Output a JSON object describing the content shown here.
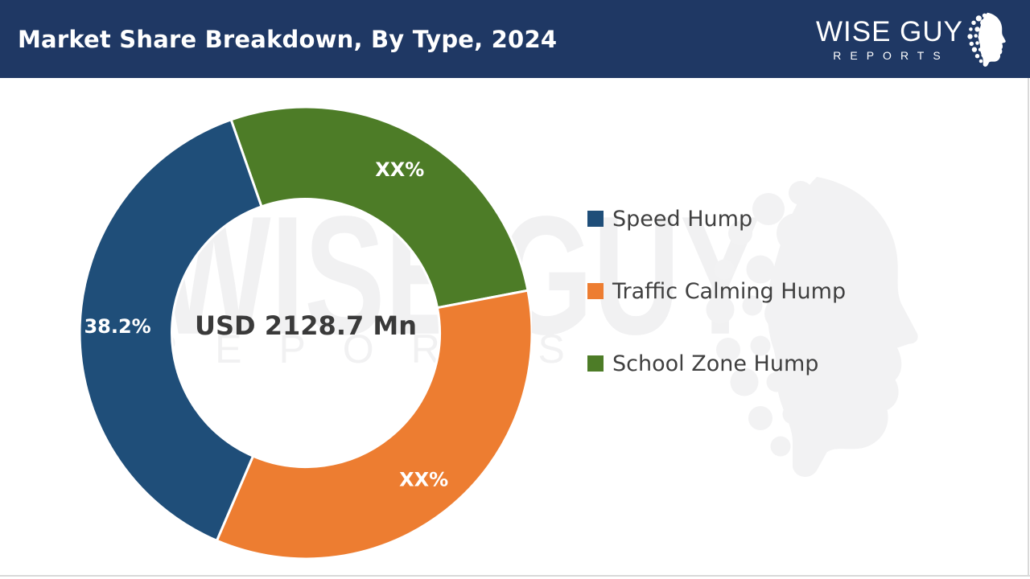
{
  "header": {
    "title": "Market Share Breakdown, By Type, 2024",
    "background_color": "#1f3864",
    "logo": {
      "line1": "WISE GUY",
      "line2": "REPORTS"
    }
  },
  "watermark": {
    "line1": "WISE GUY",
    "line2": "REPORTS"
  },
  "colors": {
    "header_navy": "#1f3864",
    "blue": "#1f4e79",
    "orange": "#ed7d31",
    "green": "#4d7c27",
    "label_white": "#ffffff",
    "text_dark": "#3a3a3a",
    "legend_text": "#3f3f3f",
    "border_gray": "#d9d9d9",
    "watermark_gray": "#f1f1f2"
  },
  "chart_data": {
    "type": "donut",
    "title": "Market Share Breakdown, By Type, 2024",
    "center_label": "USD 2128.7 Mn",
    "rotation_deg": -19.3,
    "segments": [
      {
        "label": "School Zone Hump",
        "display_label": "XX%",
        "value_pct": 27.35,
        "color": "#4d7c27"
      },
      {
        "label": "Traffic Calming Hump",
        "display_label": "XX%",
        "value_pct": 34.45,
        "color": "#ed7d31"
      },
      {
        "label": "Speed Hump",
        "display_label": "38.2%",
        "value_pct": 38.2,
        "color": "#1f4e79"
      }
    ],
    "legend": [
      {
        "label": "Speed Hump",
        "color": "#1f4e79"
      },
      {
        "label": "Traffic Calming Hump",
        "color": "#ed7d31"
      },
      {
        "label": "School Zone Hump",
        "color": "#4d7c27"
      }
    ],
    "legend_position": "right"
  }
}
